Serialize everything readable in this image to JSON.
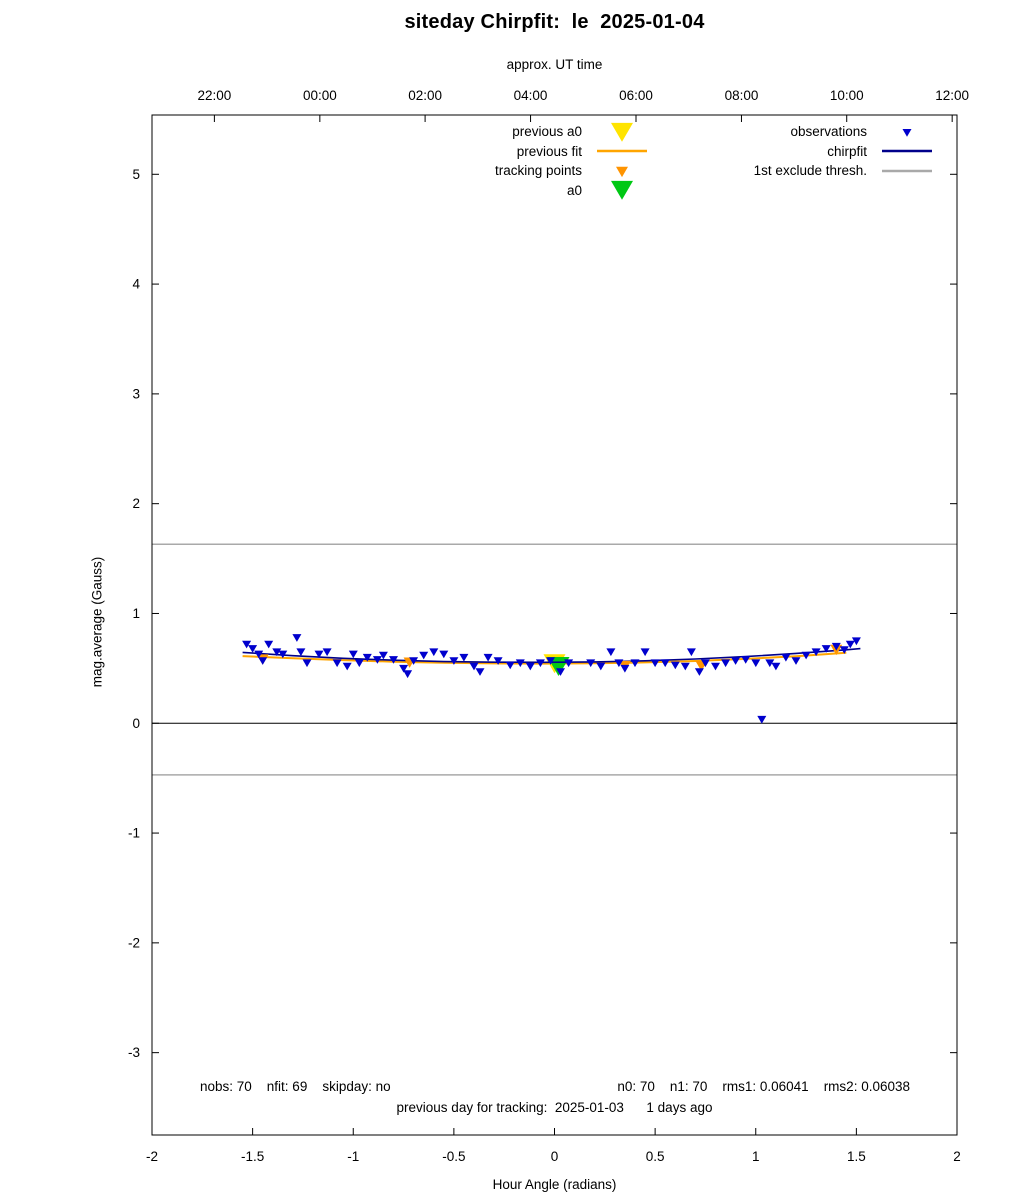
{
  "title": "siteday Chirpfit:  le  2025-01-04",
  "top_axis_label": "approx. UT time",
  "stats": {
    "left": "nobs: 70    nfit: 69    skipday: no",
    "right": "n0: 70    n1: 70    rms1: 0.06041    rms2: 0.06038",
    "tracking": "previous day for tracking:  2025-01-03      1 days ago"
  },
  "legend": {
    "left": [
      {
        "label": "previous a0",
        "marker": "triangle-large",
        "color": "#ffe400"
      },
      {
        "label": "previous fit",
        "marker": "line",
        "color": "#ffa500"
      },
      {
        "label": "tracking points",
        "marker": "triangle-medium",
        "color": "#ff9400"
      },
      {
        "label": "a0",
        "marker": "triangle-large",
        "color": "#00c814"
      }
    ],
    "right": [
      {
        "label": "observations",
        "marker": "triangle-small",
        "color": "#0000cd"
      },
      {
        "label": "chirpfit",
        "marker": "line",
        "color": "#00008b"
      },
      {
        "label": "1st exclude thresh.",
        "marker": "line",
        "color": "#a9a9a9"
      }
    ]
  },
  "chart_data": {
    "type": "scatter",
    "title": "siteday Chirpfit:  le  2025-01-04",
    "xlabel": "Hour Angle (radians)",
    "ylabel": "mag.average (Gauss)",
    "top_axis_label": "approx. UT time",
    "xlim": [
      -2,
      2
    ],
    "ylim": [
      -3.75,
      5.54
    ],
    "grid": false,
    "x_ticks": [
      {
        "v": -2,
        "label": "-2"
      },
      {
        "v": -1.5,
        "label": "-1.5"
      },
      {
        "v": -1,
        "label": "-1"
      },
      {
        "v": -0.5,
        "label": "-0.5"
      },
      {
        "v": 0,
        "label": "0"
      },
      {
        "v": 0.5,
        "label": "0.5"
      },
      {
        "v": 1,
        "label": "1"
      },
      {
        "v": 1.5,
        "label": "1.5"
      },
      {
        "v": 2,
        "label": "2"
      }
    ],
    "y_ticks": [
      {
        "v": 5,
        "label": "5"
      },
      {
        "v": 4,
        "label": "4"
      },
      {
        "v": 3,
        "label": "3"
      },
      {
        "v": 2,
        "label": "2"
      },
      {
        "v": 1,
        "label": "1"
      },
      {
        "v": 0,
        "label": "0"
      },
      {
        "v": -1,
        "label": "-1"
      },
      {
        "v": -2,
        "label": "-2"
      },
      {
        "v": -3,
        "label": "-3"
      }
    ],
    "top_ticks": [
      {
        "v": -1.69,
        "label": "22:00"
      },
      {
        "v": -1.166,
        "label": "00:00"
      },
      {
        "v": -0.643,
        "label": "02:00"
      },
      {
        "v": -0.119,
        "label": "04:00"
      },
      {
        "v": 0.405,
        "label": "06:00"
      },
      {
        "v": 0.929,
        "label": "08:00"
      },
      {
        "v": 1.452,
        "label": "10:00"
      },
      {
        "v": 1.976,
        "label": "12:00"
      }
    ],
    "hlines": [
      {
        "name": "first-exclude-threshold-upper",
        "y": 1.63,
        "color": "#a9a9a9",
        "width": 1.5
      },
      {
        "name": "first-exclude-threshold-lower",
        "y": -0.47,
        "color": "#a9a9a9",
        "width": 1.5
      },
      {
        "name": "zero-axis",
        "y": 0,
        "color": "#000000",
        "width": 1
      }
    ],
    "series": [
      {
        "name": "previous fit",
        "type": "line",
        "color": "#ffa500",
        "width": 2,
        "points": [
          [
            -1.55,
            0.612
          ],
          [
            -1.3,
            0.592
          ],
          [
            -1.05,
            0.575
          ],
          [
            -0.8,
            0.561
          ],
          [
            -0.55,
            0.551
          ],
          [
            -0.3,
            0.545
          ],
          [
            -0.05,
            0.543
          ],
          [
            0.2,
            0.546
          ],
          [
            0.45,
            0.554
          ],
          [
            0.7,
            0.567
          ],
          [
            0.95,
            0.586
          ],
          [
            1.2,
            0.611
          ],
          [
            1.45,
            0.643
          ]
        ]
      },
      {
        "name": "previous a0",
        "type": "scatter",
        "color": "#ffe400",
        "marker_size": 11,
        "points": [
          [
            0.0,
            0.55
          ]
        ]
      },
      {
        "name": "a0",
        "type": "scatter",
        "color": "#00c814",
        "marker_size": 11,
        "points": [
          [
            0.02,
            0.525
          ]
        ]
      },
      {
        "name": "chirpfit",
        "type": "line",
        "color": "#00008b",
        "width": 1.6,
        "points": [
          [
            -1.55,
            0.645
          ],
          [
            -1.3,
            0.615
          ],
          [
            -1.05,
            0.592
          ],
          [
            -0.8,
            0.574
          ],
          [
            -0.55,
            0.562
          ],
          [
            -0.3,
            0.556
          ],
          [
            -0.05,
            0.555
          ],
          [
            0.2,
            0.559
          ],
          [
            0.45,
            0.569
          ],
          [
            0.7,
            0.585
          ],
          [
            0.95,
            0.607
          ],
          [
            1.2,
            0.636
          ],
          [
            1.45,
            0.669
          ],
          [
            1.52,
            0.68
          ]
        ]
      },
      {
        "name": "tracking points",
        "type": "scatter",
        "color": "#ff9400",
        "marker_size": 6,
        "points": [
          [
            -1.45,
            0.585
          ],
          [
            -0.72,
            0.556
          ],
          [
            0.35,
            0.525
          ],
          [
            0.73,
            0.525
          ],
          [
            1.4,
            0.672
          ]
        ]
      },
      {
        "name": "observations",
        "type": "scatter",
        "color": "#0000cd",
        "marker_size": 4.5,
        "points": [
          [
            -1.53,
            0.72
          ],
          [
            -1.5,
            0.68
          ],
          [
            -1.47,
            0.63
          ],
          [
            -1.45,
            0.57
          ],
          [
            -1.42,
            0.72
          ],
          [
            -1.38,
            0.65
          ],
          [
            -1.35,
            0.63
          ],
          [
            -1.28,
            0.78
          ],
          [
            -1.26,
            0.65
          ],
          [
            -1.23,
            0.55
          ],
          [
            -1.17,
            0.63
          ],
          [
            -1.13,
            0.65
          ],
          [
            -1.08,
            0.55
          ],
          [
            -1.03,
            0.52
          ],
          [
            -1.0,
            0.63
          ],
          [
            -0.97,
            0.55
          ],
          [
            -0.93,
            0.6
          ],
          [
            -0.88,
            0.58
          ],
          [
            -0.85,
            0.62
          ],
          [
            -0.8,
            0.58
          ],
          [
            -0.75,
            0.5
          ],
          [
            -0.73,
            0.45
          ],
          [
            -0.7,
            0.57
          ],
          [
            -0.65,
            0.62
          ],
          [
            -0.6,
            0.65
          ],
          [
            -0.55,
            0.63
          ],
          [
            -0.5,
            0.57
          ],
          [
            -0.45,
            0.6
          ],
          [
            -0.4,
            0.52
          ],
          [
            -0.37,
            0.47
          ],
          [
            -0.33,
            0.6
          ],
          [
            -0.28,
            0.57
          ],
          [
            -0.22,
            0.53
          ],
          [
            -0.17,
            0.55
          ],
          [
            -0.12,
            0.52
          ],
          [
            -0.07,
            0.55
          ],
          [
            -0.02,
            0.57
          ],
          [
            0.03,
            0.47
          ],
          [
            0.07,
            0.55
          ],
          [
            0.18,
            0.55
          ],
          [
            0.23,
            0.52
          ],
          [
            0.28,
            0.65
          ],
          [
            0.32,
            0.55
          ],
          [
            0.35,
            0.5
          ],
          [
            0.4,
            0.55
          ],
          [
            0.45,
            0.65
          ],
          [
            0.5,
            0.55
          ],
          [
            0.55,
            0.55
          ],
          [
            0.6,
            0.53
          ],
          [
            0.65,
            0.52
          ],
          [
            0.68,
            0.65
          ],
          [
            0.72,
            0.47
          ],
          [
            0.75,
            0.55
          ],
          [
            0.8,
            0.52
          ],
          [
            0.85,
            0.55
          ],
          [
            0.9,
            0.57
          ],
          [
            0.95,
            0.58
          ],
          [
            1.0,
            0.55
          ],
          [
            1.03,
            0.035
          ],
          [
            1.07,
            0.55
          ],
          [
            1.1,
            0.52
          ],
          [
            1.15,
            0.6
          ],
          [
            1.2,
            0.57
          ],
          [
            1.25,
            0.62
          ],
          [
            1.3,
            0.65
          ],
          [
            1.35,
            0.68
          ],
          [
            1.4,
            0.7
          ],
          [
            1.44,
            0.67
          ],
          [
            1.47,
            0.72
          ],
          [
            1.5,
            0.75
          ]
        ]
      }
    ],
    "annotations": {
      "nobs": 70,
      "nfit": 69,
      "skipday": "no",
      "n0": 70,
      "n1": 70,
      "rms1": 0.06041,
      "rms2": 0.06038,
      "previous_day_for_tracking": "2025-01-03",
      "days_ago": 1
    }
  }
}
